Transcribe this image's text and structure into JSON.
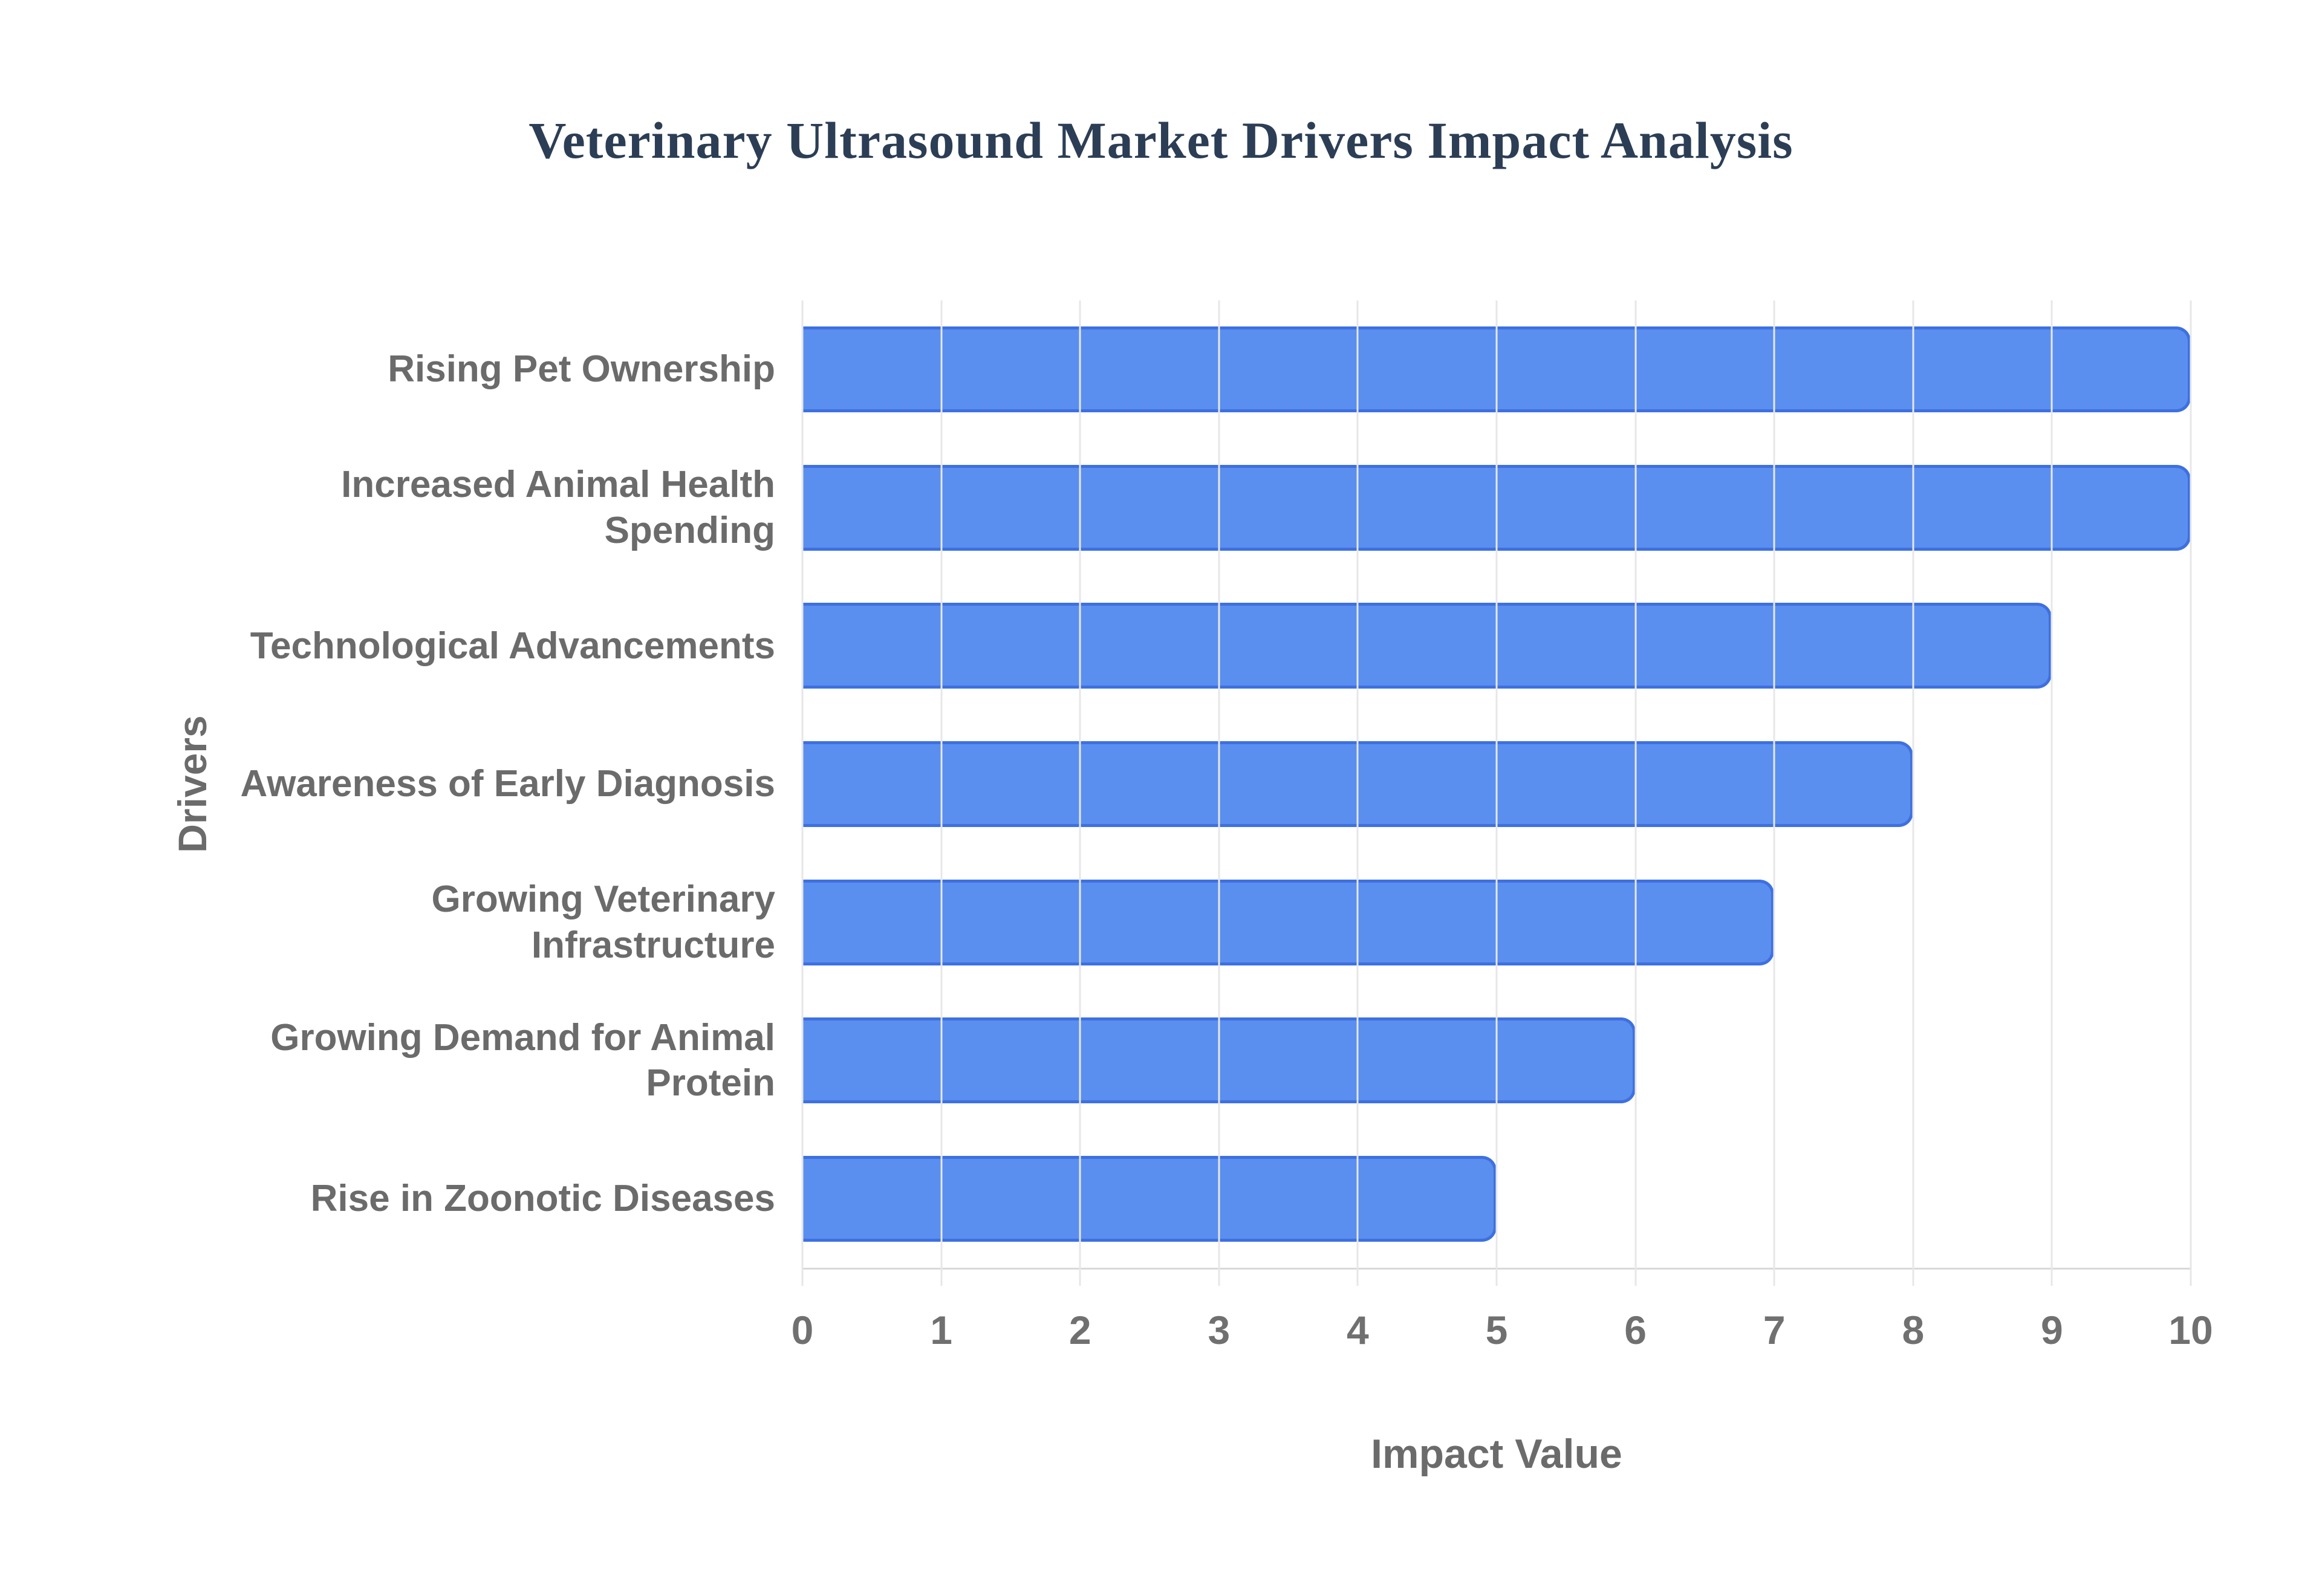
{
  "title": "Veterinary Ultrasound Market Drivers Impact Analysis",
  "colors": {
    "background": "#ffffff",
    "bar_fill": "#5a8ff0",
    "bar_border": "#3e70e0",
    "gridline": "#e7e7e7",
    "axis_line": "#d8d8d8",
    "title_text": "#2c3e55",
    "label_text": "#6b6b6b"
  },
  "chart_data": {
    "type": "bar",
    "orientation": "horizontal",
    "title": "Veterinary Ultrasound Market Drivers Impact Analysis",
    "xlabel": "Impact Value",
    "ylabel": "Drivers",
    "xlim": [
      0,
      10
    ],
    "xticks": [
      0,
      1,
      2,
      3,
      4,
      5,
      6,
      7,
      8,
      9,
      10
    ],
    "grid": "vertical",
    "legend": "none",
    "categories": [
      "Rising Pet Ownership",
      "Increased Animal Health Spending",
      "Technological Advancements",
      "Awareness of Early Diagnosis",
      "Growing Veterinary Infrastructure",
      "Growing Demand for Animal Protein",
      "Rise in Zoonotic Diseases"
    ],
    "categories_display": [
      [
        "Rising Pet Ownership"
      ],
      [
        "Increased Animal Health",
        "Spending"
      ],
      [
        "Technological Advancements"
      ],
      [
        "Awareness of Early Diagnosis"
      ],
      [
        "Growing Veterinary",
        "Infrastructure"
      ],
      [
        "Growing Demand for Animal",
        "Protein"
      ],
      [
        "Rise in Zoonotic Diseases"
      ]
    ],
    "values": [
      10,
      10,
      9,
      8,
      7,
      6,
      5
    ]
  }
}
